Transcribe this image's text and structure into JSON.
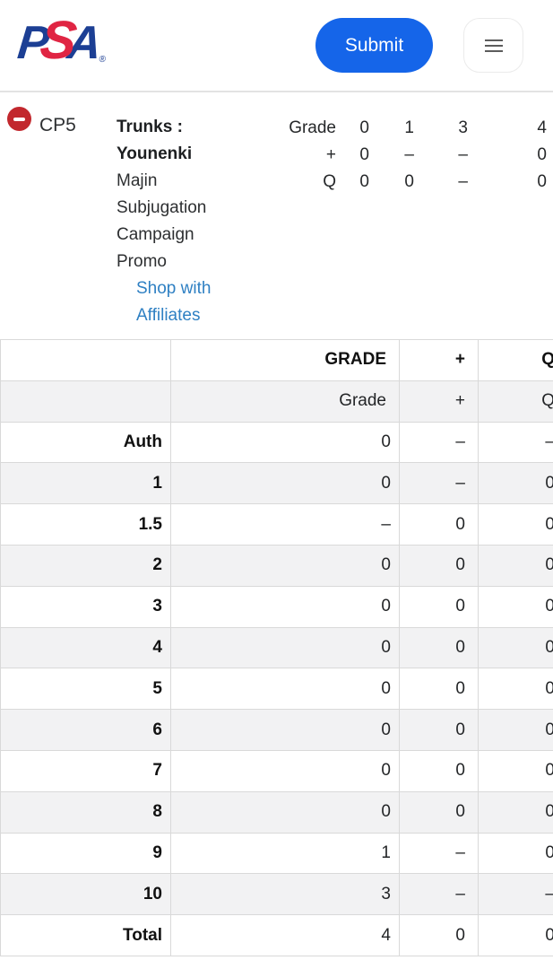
{
  "header": {
    "submit_label": "Submit",
    "logo": {
      "letters": [
        "P",
        "S",
        "A"
      ],
      "registered": "®"
    },
    "menu_icon": "hamburger-icon"
  },
  "card": {
    "code": "CP5",
    "name": "Trunks : Younenki",
    "set": "Majin Subjugation Campaign Promo",
    "affiliate_link_label": "Shop with Affiliates",
    "remove_icon": "minus-circle-icon",
    "mini_table": {
      "rows": [
        {
          "label": "Grade",
          "values": [
            "0",
            "1",
            "3",
            "4"
          ]
        },
        {
          "label": "+",
          "values": [
            "0",
            "–",
            "–",
            "0"
          ]
        },
        {
          "label": "Q",
          "values": [
            "0",
            "0",
            "–",
            "0"
          ]
        }
      ]
    }
  },
  "table": {
    "header_primary": [
      "",
      "GRADE",
      "+",
      "Q"
    ],
    "header_secondary": [
      "",
      "Grade",
      "+",
      "Q"
    ],
    "rows": [
      {
        "label": "Auth",
        "cells": [
          "0",
          "–",
          "–"
        ]
      },
      {
        "label": "1",
        "cells": [
          "0",
          "–",
          "0"
        ]
      },
      {
        "label": "1.5",
        "cells": [
          "–",
          "0",
          "0"
        ]
      },
      {
        "label": "2",
        "cells": [
          "0",
          "0",
          "0"
        ]
      },
      {
        "label": "3",
        "cells": [
          "0",
          "0",
          "0"
        ]
      },
      {
        "label": "4",
        "cells": [
          "0",
          "0",
          "0"
        ]
      },
      {
        "label": "5",
        "cells": [
          "0",
          "0",
          "0"
        ]
      },
      {
        "label": "6",
        "cells": [
          "0",
          "0",
          "0"
        ]
      },
      {
        "label": "7",
        "cells": [
          "0",
          "0",
          "0"
        ]
      },
      {
        "label": "8",
        "cells": [
          "0",
          "0",
          "0"
        ]
      },
      {
        "label": "9",
        "cells": [
          "1",
          "–",
          "0"
        ]
      },
      {
        "label": "10",
        "cells": [
          "3",
          "–",
          "–"
        ]
      },
      {
        "label": "Total",
        "cells": [
          "4",
          "0",
          "0"
        ]
      }
    ]
  },
  "colors": {
    "submit_blue": "#1565e9",
    "link_blue": "#2f80c3",
    "remove_red": "#c2282e",
    "logo_navy": "#1c3f94",
    "logo_red": "#e02543",
    "zebra": "#f2f2f3",
    "table_border": "#d9d9d9",
    "text": "#26282a"
  }
}
